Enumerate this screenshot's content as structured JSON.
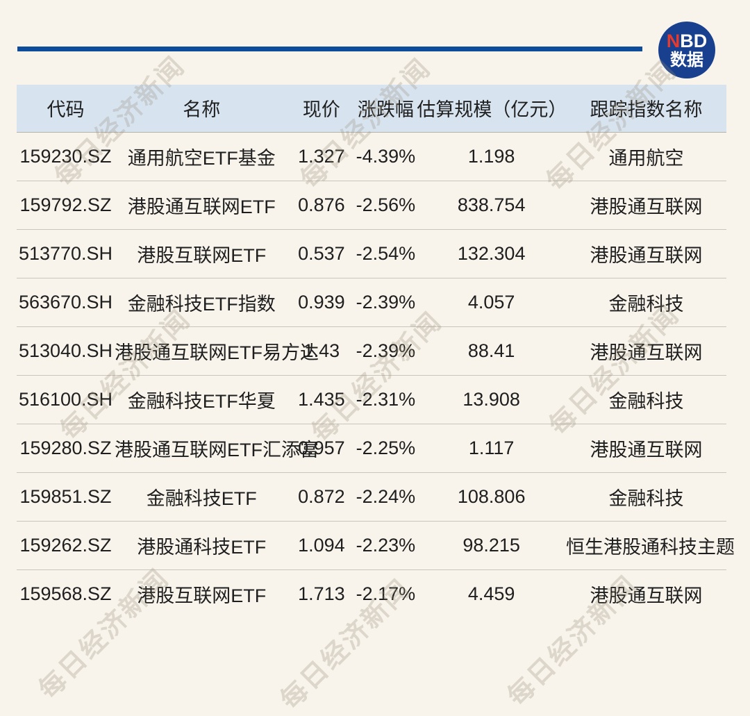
{
  "logo": {
    "line1_red": "N",
    "line1_rest": "BD",
    "line2": "数据"
  },
  "watermark": {
    "text": "每日经济新闻"
  },
  "chart_data": {
    "type": "table",
    "title": "",
    "columns": [
      "代码",
      "名称",
      "现价",
      "涨跌幅",
      "估算规模（亿元）",
      "跟踪指数名称"
    ],
    "rows": [
      [
        "159230.SZ",
        "通用航空ETF基金",
        "1.327",
        "-4.39%",
        "1.198",
        "通用航空"
      ],
      [
        "159792.SZ",
        "港股通互联网ETF",
        "0.876",
        "-2.56%",
        "838.754",
        "港股通互联网"
      ],
      [
        "513770.SH",
        "港股互联网ETF",
        "0.537",
        "-2.54%",
        "132.304",
        "港股通互联网"
      ],
      [
        "563670.SH",
        "金融科技ETF指数",
        "0.939",
        "-2.39%",
        "4.057",
        "金融科技"
      ],
      [
        "513040.SH",
        "港股通互联网ETF易方达",
        "1.43",
        "-2.39%",
        "88.41",
        "港股通互联网"
      ],
      [
        "516100.SH",
        "金融科技ETF华夏",
        "1.435",
        "-2.31%",
        "13.908",
        "金融科技"
      ],
      [
        "159280.SZ",
        "港股通互联网ETF汇添富",
        "0.957",
        "-2.25%",
        "1.117",
        "港股通互联网"
      ],
      [
        "159851.SZ",
        "金融科技ETF",
        "0.872",
        "-2.24%",
        "108.806",
        "金融科技"
      ],
      [
        "159262.SZ",
        "港股通科技ETF",
        "1.094",
        "-2.23%",
        "98.215",
        "恒生港股通科技主题"
      ],
      [
        "159568.SZ",
        "港股互联网ETF",
        "1.713",
        "-2.17%",
        "4.459",
        "港股通互联网"
      ]
    ]
  },
  "colors": {
    "page_bg": "#f8f4ec",
    "accent_line": "#0d4b9b",
    "logo_blue": "#19408e",
    "logo_red": "#e53a2e",
    "header_bg": "#d7e4f0",
    "text": "#1e1e1e"
  }
}
